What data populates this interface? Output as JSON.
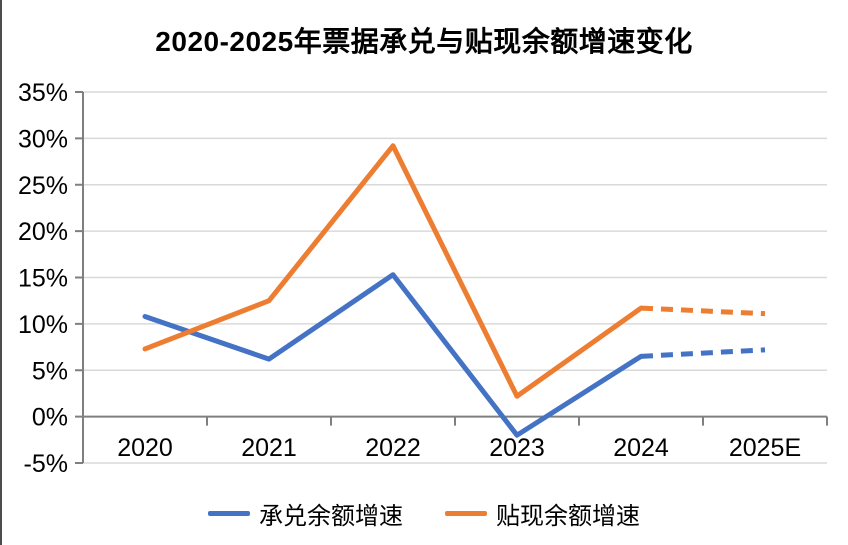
{
  "chart_data": {
    "type": "line",
    "title": "2020-2025年票据承兑与贴现余额增速变化",
    "categories": [
      "2020",
      "2021",
      "2022",
      "2023",
      "2024",
      "2025E"
    ],
    "series": [
      {
        "name": "承兑余额增速",
        "color": "#4472C4",
        "values": [
          10.8,
          6.2,
          15.3,
          -2.0,
          6.5,
          7.2
        ],
        "dashed_from_index": 4
      },
      {
        "name": "贴现余额增速",
        "color": "#ED7D31",
        "values": [
          7.3,
          12.5,
          29.2,
          2.2,
          11.7,
          11.1
        ],
        "dashed_from_index": 4
      }
    ],
    "xlabel": "",
    "ylabel": "",
    "ylim": [
      -5,
      35
    ],
    "y_tick_step": 5,
    "y_tick_labels": [
      "35%",
      "30%",
      "25%",
      "20%",
      "15%",
      "10%",
      "5%",
      "0%",
      "-5%"
    ],
    "grid": true,
    "legend_position": "bottom",
    "colors": {
      "gridline": "#D9D9D9",
      "axis": "#7F7F7F",
      "text": "#000000",
      "background": "#FFFFFF",
      "page_left_border": "#4D4D4D"
    }
  }
}
